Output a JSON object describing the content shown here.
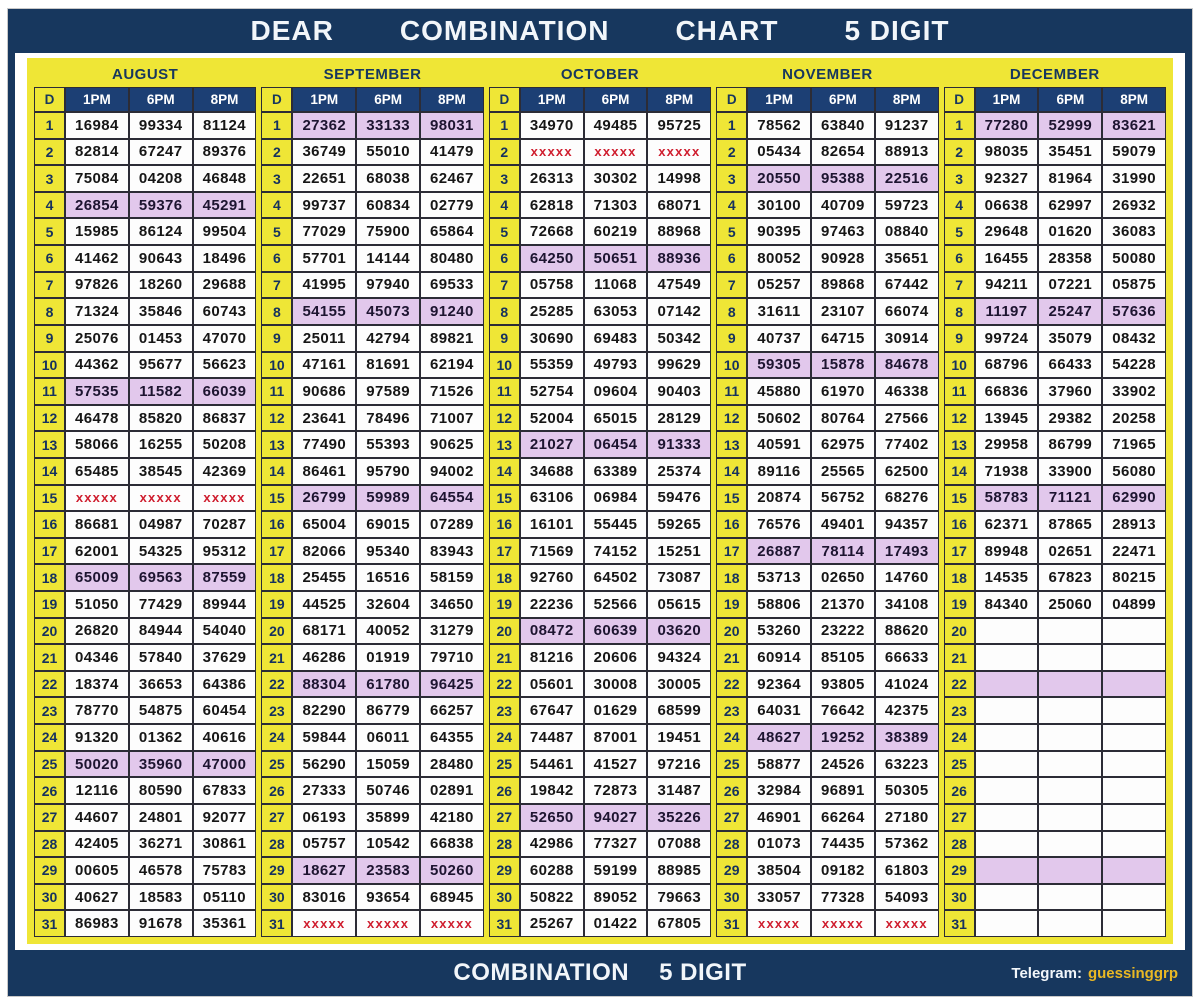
{
  "title": {
    "segments": [
      "DEAR",
      "COMBINATION",
      "CHART",
      "5 DIGIT"
    ]
  },
  "columns": {
    "day": "D",
    "times": [
      "1PM",
      "6PM",
      "8PM"
    ]
  },
  "colors": {
    "navy": "#17375e",
    "subheader_navy": "#1c3f74",
    "yellow": "#efe636",
    "highlight_purple": "#e2c8ec",
    "missing_red": "#cf1d2e",
    "telegram_gold": "#e9b824"
  },
  "missing_marker": "xxxxx",
  "months": [
    {
      "name": "AUGUST",
      "highlight_days": [
        4,
        11,
        18,
        25
      ],
      "rows": [
        [
          1,
          "16984",
          "99334",
          "81124"
        ],
        [
          2,
          "82814",
          "67247",
          "89376"
        ],
        [
          3,
          "75084",
          "04208",
          "46848"
        ],
        [
          4,
          "26854",
          "59376",
          "45291"
        ],
        [
          5,
          "15985",
          "86124",
          "99504"
        ],
        [
          6,
          "41462",
          "90643",
          "18496"
        ],
        [
          7,
          "97826",
          "18260",
          "29688"
        ],
        [
          8,
          "71324",
          "35846",
          "60743"
        ],
        [
          9,
          "25076",
          "01453",
          "47070"
        ],
        [
          10,
          "44362",
          "95677",
          "56623"
        ],
        [
          11,
          "57535",
          "11582",
          "66039"
        ],
        [
          12,
          "46478",
          "85820",
          "86837"
        ],
        [
          13,
          "58066",
          "16255",
          "50208"
        ],
        [
          14,
          "65485",
          "38545",
          "42369"
        ],
        [
          15,
          "xxxxx",
          "xxxxx",
          "xxxxx"
        ],
        [
          16,
          "86681",
          "04987",
          "70287"
        ],
        [
          17,
          "62001",
          "54325",
          "95312"
        ],
        [
          18,
          "65009",
          "69563",
          "87559"
        ],
        [
          19,
          "51050",
          "77429",
          "89944"
        ],
        [
          20,
          "26820",
          "84944",
          "54040"
        ],
        [
          21,
          "04346",
          "57840",
          "37629"
        ],
        [
          22,
          "18374",
          "36653",
          "64386"
        ],
        [
          23,
          "78770",
          "54875",
          "60454"
        ],
        [
          24,
          "91320",
          "01362",
          "40616"
        ],
        [
          25,
          "50020",
          "35960",
          "47000"
        ],
        [
          26,
          "12116",
          "80590",
          "67833"
        ],
        [
          27,
          "44607",
          "24801",
          "92077"
        ],
        [
          28,
          "42405",
          "36271",
          "30861"
        ],
        [
          29,
          "00605",
          "46578",
          "75783"
        ],
        [
          30,
          "40627",
          "18583",
          "05110"
        ],
        [
          31,
          "86983",
          "91678",
          "35361"
        ]
      ]
    },
    {
      "name": "SEPTEMBER",
      "highlight_days": [
        1,
        8,
        15,
        22,
        29
      ],
      "rows": [
        [
          1,
          "27362",
          "33133",
          "98031"
        ],
        [
          2,
          "36749",
          "55010",
          "41479"
        ],
        [
          3,
          "22651",
          "68038",
          "62467"
        ],
        [
          4,
          "99737",
          "60834",
          "02779"
        ],
        [
          5,
          "77029",
          "75900",
          "65864"
        ],
        [
          6,
          "57701",
          "14144",
          "80480"
        ],
        [
          7,
          "41995",
          "97940",
          "69533"
        ],
        [
          8,
          "54155",
          "45073",
          "91240"
        ],
        [
          9,
          "25011",
          "42794",
          "89821"
        ],
        [
          10,
          "47161",
          "81691",
          "62194"
        ],
        [
          11,
          "90686",
          "97589",
          "71526"
        ],
        [
          12,
          "23641",
          "78496",
          "71007"
        ],
        [
          13,
          "77490",
          "55393",
          "90625"
        ],
        [
          14,
          "86461",
          "95790",
          "94002"
        ],
        [
          15,
          "26799",
          "59989",
          "64554"
        ],
        [
          16,
          "65004",
          "69015",
          "07289"
        ],
        [
          17,
          "82066",
          "95340",
          "83943"
        ],
        [
          18,
          "25455",
          "16516",
          "58159"
        ],
        [
          19,
          "44525",
          "32604",
          "34650"
        ],
        [
          20,
          "68171",
          "40052",
          "31279"
        ],
        [
          21,
          "46286",
          "01919",
          "79710"
        ],
        [
          22,
          "88304",
          "61780",
          "96425"
        ],
        [
          23,
          "82290",
          "86779",
          "66257"
        ],
        [
          24,
          "59844",
          "06011",
          "64355"
        ],
        [
          25,
          "56290",
          "15059",
          "28480"
        ],
        [
          26,
          "27333",
          "50746",
          "02891"
        ],
        [
          27,
          "06193",
          "35899",
          "42180"
        ],
        [
          28,
          "05757",
          "10542",
          "66838"
        ],
        [
          29,
          "18627",
          "23583",
          "50260"
        ],
        [
          30,
          "83016",
          "93654",
          "68945"
        ],
        [
          31,
          "xxxxx",
          "xxxxx",
          "xxxxx"
        ]
      ]
    },
    {
      "name": "OCTOBER",
      "highlight_days": [
        6,
        13,
        20,
        27
      ],
      "rows": [
        [
          1,
          "34970",
          "49485",
          "95725"
        ],
        [
          2,
          "xxxxx",
          "xxxxx",
          "xxxxx"
        ],
        [
          3,
          "26313",
          "30302",
          "14998"
        ],
        [
          4,
          "62818",
          "71303",
          "68071"
        ],
        [
          5,
          "72668",
          "60219",
          "88968"
        ],
        [
          6,
          "64250",
          "50651",
          "88936"
        ],
        [
          7,
          "05758",
          "11068",
          "47549"
        ],
        [
          8,
          "25285",
          "63053",
          "07142"
        ],
        [
          9,
          "30690",
          "69483",
          "50342"
        ],
        [
          10,
          "55359",
          "49793",
          "99629"
        ],
        [
          11,
          "52754",
          "09604",
          "90403"
        ],
        [
          12,
          "52004",
          "65015",
          "28129"
        ],
        [
          13,
          "21027",
          "06454",
          "91333"
        ],
        [
          14,
          "34688",
          "63389",
          "25374"
        ],
        [
          15,
          "63106",
          "06984",
          "59476"
        ],
        [
          16,
          "16101",
          "55445",
          "59265"
        ],
        [
          17,
          "71569",
          "74152",
          "15251"
        ],
        [
          18,
          "92760",
          "64502",
          "73087"
        ],
        [
          19,
          "22236",
          "52566",
          "05615"
        ],
        [
          20,
          "08472",
          "60639",
          "03620"
        ],
        [
          21,
          "81216",
          "20606",
          "94324"
        ],
        [
          22,
          "05601",
          "30008",
          "30005"
        ],
        [
          23,
          "67647",
          "01629",
          "68599"
        ],
        [
          24,
          "74487",
          "87001",
          "19451"
        ],
        [
          25,
          "54461",
          "41527",
          "97216"
        ],
        [
          26,
          "19842",
          "72873",
          "31487"
        ],
        [
          27,
          "52650",
          "94027",
          "35226"
        ],
        [
          28,
          "42986",
          "77327",
          "07088"
        ],
        [
          29,
          "60288",
          "59199",
          "88985"
        ],
        [
          30,
          "50822",
          "89052",
          "79663"
        ],
        [
          31,
          "25267",
          "01422",
          "67805"
        ]
      ]
    },
    {
      "name": "NOVEMBER",
      "highlight_days": [
        3,
        10,
        17,
        24
      ],
      "rows": [
        [
          1,
          "78562",
          "63840",
          "91237"
        ],
        [
          2,
          "05434",
          "82654",
          "88913"
        ],
        [
          3,
          "20550",
          "95388",
          "22516"
        ],
        [
          4,
          "30100",
          "40709",
          "59723"
        ],
        [
          5,
          "90395",
          "97463",
          "08840"
        ],
        [
          6,
          "80052",
          "90928",
          "35651"
        ],
        [
          7,
          "05257",
          "89868",
          "67442"
        ],
        [
          8,
          "31611",
          "23107",
          "66074"
        ],
        [
          9,
          "40737",
          "64715",
          "30914"
        ],
        [
          10,
          "59305",
          "15878",
          "84678"
        ],
        [
          11,
          "45880",
          "61970",
          "46338"
        ],
        [
          12,
          "50602",
          "80764",
          "27566"
        ],
        [
          13,
          "40591",
          "62975",
          "77402"
        ],
        [
          14,
          "89116",
          "25565",
          "62500"
        ],
        [
          15,
          "20874",
          "56752",
          "68276"
        ],
        [
          16,
          "76576",
          "49401",
          "94357"
        ],
        [
          17,
          "26887",
          "78114",
          "17493"
        ],
        [
          18,
          "53713",
          "02650",
          "14760"
        ],
        [
          19,
          "58806",
          "21370",
          "34108"
        ],
        [
          20,
          "53260",
          "23222",
          "88620"
        ],
        [
          21,
          "60914",
          "85105",
          "66633"
        ],
        [
          22,
          "92364",
          "93805",
          "41024"
        ],
        [
          23,
          "64031",
          "76642",
          "42375"
        ],
        [
          24,
          "48627",
          "19252",
          "38389"
        ],
        [
          25,
          "58877",
          "24526",
          "63223"
        ],
        [
          26,
          "32984",
          "96891",
          "50305"
        ],
        [
          27,
          "46901",
          "66264",
          "27180"
        ],
        [
          28,
          "01073",
          "74435",
          "57362"
        ],
        [
          29,
          "38504",
          "09182",
          "61803"
        ],
        [
          30,
          "33057",
          "77328",
          "54093"
        ],
        [
          31,
          "xxxxx",
          "xxxxx",
          "xxxxx"
        ]
      ]
    },
    {
      "name": "DECEMBER",
      "highlight_days": [
        1,
        8,
        15,
        22,
        29
      ],
      "rows": [
        [
          1,
          "77280",
          "52999",
          "83621"
        ],
        [
          2,
          "98035",
          "35451",
          "59079"
        ],
        [
          3,
          "92327",
          "81964",
          "31990"
        ],
        [
          4,
          "06638",
          "62997",
          "26932"
        ],
        [
          5,
          "29648",
          "01620",
          "36083"
        ],
        [
          6,
          "16455",
          "28358",
          "50080"
        ],
        [
          7,
          "94211",
          "07221",
          "05875"
        ],
        [
          8,
          "11197",
          "25247",
          "57636"
        ],
        [
          9,
          "99724",
          "35079",
          "08432"
        ],
        [
          10,
          "68796",
          "66433",
          "54228"
        ],
        [
          11,
          "66836",
          "37960",
          "33902"
        ],
        [
          12,
          "13945",
          "29382",
          "20258"
        ],
        [
          13,
          "29958",
          "86799",
          "71965"
        ],
        [
          14,
          "71938",
          "33900",
          "56080"
        ],
        [
          15,
          "58783",
          "71121",
          "62990"
        ],
        [
          16,
          "62371",
          "87865",
          "28913"
        ],
        [
          17,
          "89948",
          "02651",
          "22471"
        ],
        [
          18,
          "14535",
          "67823",
          "80215"
        ],
        [
          19,
          "84340",
          "25060",
          "04899"
        ],
        [
          20,
          "",
          "",
          ""
        ],
        [
          21,
          "",
          "",
          ""
        ],
        [
          22,
          "",
          "",
          ""
        ],
        [
          23,
          "",
          "",
          ""
        ],
        [
          24,
          "",
          "",
          ""
        ],
        [
          25,
          "",
          "",
          ""
        ],
        [
          26,
          "",
          "",
          ""
        ],
        [
          27,
          "",
          "",
          ""
        ],
        [
          28,
          "",
          "",
          ""
        ],
        [
          29,
          "",
          "",
          ""
        ],
        [
          30,
          "",
          "",
          ""
        ],
        [
          31,
          "",
          "",
          ""
        ]
      ]
    }
  ],
  "footer": {
    "center_segments": [
      "COMBINATION",
      "5 DIGIT"
    ],
    "telegram_label": "Telegram:",
    "telegram_handle": "guessinggrp"
  }
}
